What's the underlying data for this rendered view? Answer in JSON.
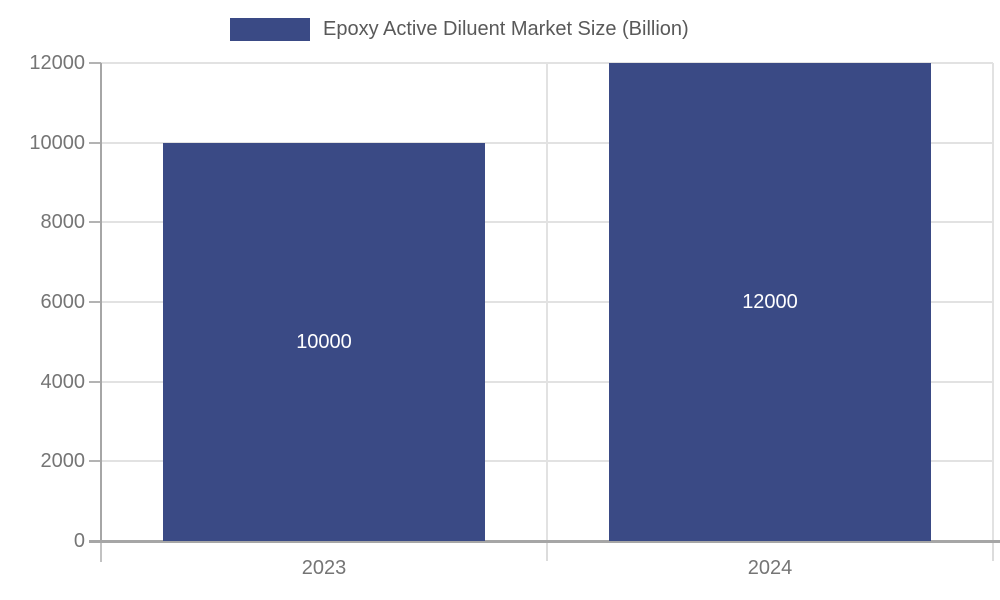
{
  "chart_data": {
    "type": "bar",
    "title": "Epoxy Active Diluent Market Size (Billion)",
    "categories": [
      "2023",
      "2024"
    ],
    "values": [
      10000,
      12000
    ],
    "bar_labels": [
      "10000",
      "12000"
    ],
    "yticks": [
      "0",
      "2000",
      "4000",
      "6000",
      "8000",
      "10000",
      "12000"
    ],
    "ytick_values": [
      0,
      2000,
      4000,
      6000,
      8000,
      10000,
      12000
    ],
    "ylim": [
      0,
      12000
    ],
    "xlabel": "",
    "ylabel": "",
    "grid": true,
    "legend_position": "top-center",
    "colors": {
      "bar": "#3A4A85",
      "bar_label_text": "#ffffff",
      "axis_line": "#a6a6a6",
      "grid_line": "#e2e2e2",
      "y_tick_mark": "#b3b3b3",
      "boundary_tick": "#dcdcdc",
      "left_boundary_tick": "#c2c2c2",
      "tick_text": "#757575",
      "title_text": "#595959"
    }
  }
}
